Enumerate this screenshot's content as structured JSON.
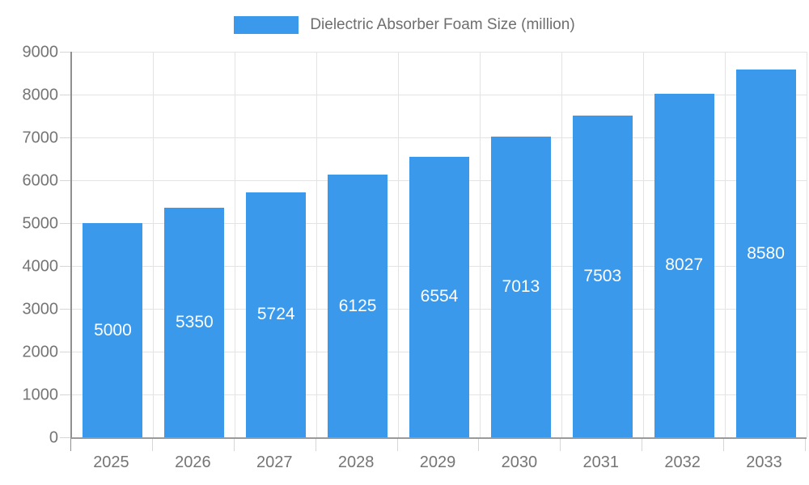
{
  "legend": {
    "label": "Dielectric Absorber Foam Size (million)"
  },
  "chart_data": {
    "type": "bar",
    "title": "Dielectric Absorber Foam Size (million)",
    "categories": [
      "2025",
      "2026",
      "2027",
      "2028",
      "2029",
      "2030",
      "2031",
      "2032",
      "2033"
    ],
    "values": [
      5000,
      5350,
      5724,
      6125,
      6554,
      7013,
      7503,
      8027,
      8580
    ],
    "xlabel": "",
    "ylabel": "",
    "ylim": [
      0,
      9000
    ],
    "ytick_step": 1000,
    "ytick_labels": [
      "0",
      "1000",
      "2000",
      "3000",
      "4000",
      "5000",
      "6000",
      "7000",
      "8000",
      "9000"
    ],
    "grid": true,
    "legend_position": "top-center",
    "bar_labels_inside": true,
    "colors": {
      "bar": "#3B99EC",
      "bar_value_text": "#FFFFFF",
      "grid": "#E3E3E3",
      "axis": "#8F8F8F",
      "tick": "#D6D6D6",
      "tick_label_text": "#757575",
      "legend_text": "#6E6E6E",
      "background": "#FFFFFF"
    }
  }
}
